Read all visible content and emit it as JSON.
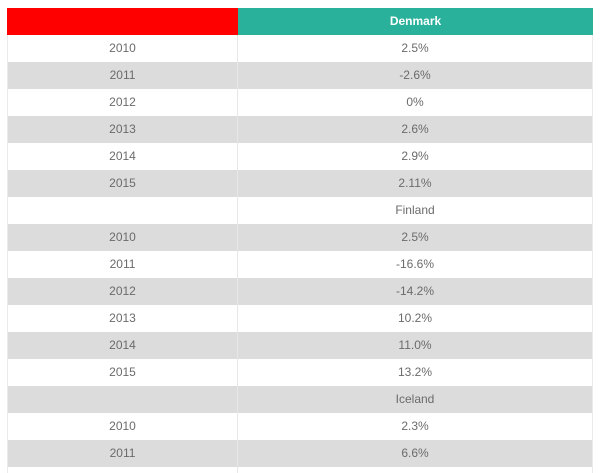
{
  "table": {
    "header": {
      "left_label": "",
      "right_label": "Denmark"
    },
    "rows": [
      {
        "year": "2010",
        "value": "2.5%"
      },
      {
        "year": "2011",
        "value": "-2.6%"
      },
      {
        "year": "2012",
        "value": "0%"
      },
      {
        "year": "2013",
        "value": "2.6%"
      },
      {
        "year": "2014",
        "value": "2.9%"
      },
      {
        "year": "2015",
        "value": "2.11%"
      },
      {
        "year": "",
        "value": "Finland"
      },
      {
        "year": "2010",
        "value": "2.5%"
      },
      {
        "year": "2011",
        "value": "-16.6%"
      },
      {
        "year": "2012",
        "value": "-14.2%"
      },
      {
        "year": "2013",
        "value": "10.2%"
      },
      {
        "year": "2014",
        "value": "11.0%"
      },
      {
        "year": "2015",
        "value": "13.2%"
      },
      {
        "year": "",
        "value": "Iceland"
      },
      {
        "year": "2010",
        "value": "2.3%"
      },
      {
        "year": "2011",
        "value": "6.6%"
      },
      {
        "year": "",
        "value": ""
      }
    ],
    "colors": {
      "header_left_bg": "#ff0000",
      "header_right_bg": "#2ab19b",
      "header_text": "#ffffff",
      "row_bg": "#ffffff",
      "row_alt_bg": "#dcdcdc",
      "text": "#6b6b6b",
      "divider": "#e7e7e7",
      "edge_border": "#eaeaea"
    }
  },
  "chart_data": {
    "type": "table",
    "title": "",
    "columns": [
      "",
      "Denmark"
    ],
    "rows": [
      [
        "2010",
        "2.5%"
      ],
      [
        "2011",
        "-2.6%"
      ],
      [
        "2012",
        "0%"
      ],
      [
        "2013",
        "2.6%"
      ],
      [
        "2014",
        "2.9%"
      ],
      [
        "2015",
        "2.11%"
      ],
      [
        "",
        "Finland"
      ],
      [
        "2010",
        "2.5%"
      ],
      [
        "2011",
        "-16.6%"
      ],
      [
        "2012",
        "-14.2%"
      ],
      [
        "2013",
        "10.2%"
      ],
      [
        "2014",
        "11.0%"
      ],
      [
        "2015",
        "13.2%"
      ],
      [
        "",
        "Iceland"
      ],
      [
        "2010",
        "2.3%"
      ],
      [
        "2011",
        "6.6%"
      ],
      [
        "",
        ""
      ]
    ],
    "groups": [
      {
        "name": "Denmark",
        "years": [
          2010,
          2011,
          2012,
          2013,
          2014,
          2015
        ],
        "values_pct": [
          2.5,
          -2.6,
          0,
          2.6,
          2.9,
          2.11
        ]
      },
      {
        "name": "Finland",
        "years": [
          2010,
          2011,
          2012,
          2013,
          2014,
          2015
        ],
        "values_pct": [
          2.5,
          -16.6,
          -14.2,
          10.2,
          11.0,
          13.2
        ]
      },
      {
        "name": "Iceland",
        "years": [
          2010,
          2011
        ],
        "values_pct": [
          2.3,
          6.6
        ]
      }
    ],
    "layout": {
      "striped": true,
      "first_data_row_bg": "white",
      "header_colors": [
        "#ff0000",
        "#2ab19b"
      ]
    }
  }
}
